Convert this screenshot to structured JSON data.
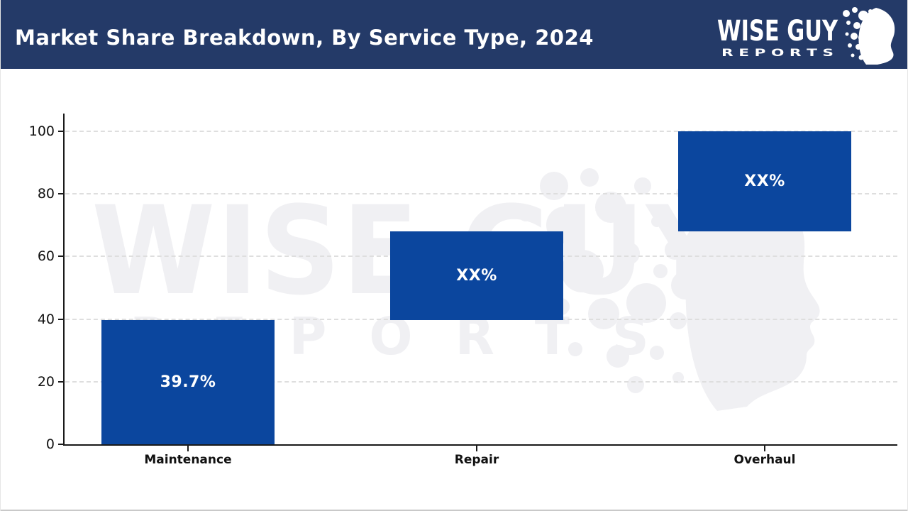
{
  "header": {
    "title": "Market Share Breakdown, By Service Type, 2024",
    "logo": {
      "line1": "WISE GUY",
      "line2": "R E P O R T S"
    }
  },
  "watermark": {
    "line1": "WISE GUY",
    "line2": "REPORTS"
  },
  "colors": {
    "header_bg": "#243a68",
    "bar": "#0b469e",
    "grid": "#dedede",
    "axis": "#1a1a1a",
    "text": "#111111",
    "bar_label": "#ffffff",
    "watermark": "#f0f0f3"
  },
  "chart_data": {
    "type": "bar",
    "variant": "waterfall",
    "title": "Market Share Breakdown, By Service Type, 2024",
    "categories": [
      "Maintenance",
      "Repair",
      "Overhaul"
    ],
    "segments": [
      {
        "category": "Maintenance",
        "start": 0,
        "end": 39.7,
        "label": "39.7%"
      },
      {
        "category": "Repair",
        "start": 39.7,
        "end": 68,
        "label": "XX%"
      },
      {
        "category": "Overhaul",
        "start": 68,
        "end": 100,
        "label": "XX%"
      }
    ],
    "ylim": [
      0,
      100
    ],
    "yticks": [
      0,
      20,
      40,
      60,
      80,
      100
    ],
    "xlabel": "",
    "ylabel": "",
    "grid": "dashed-horizontal",
    "legend": "none"
  }
}
